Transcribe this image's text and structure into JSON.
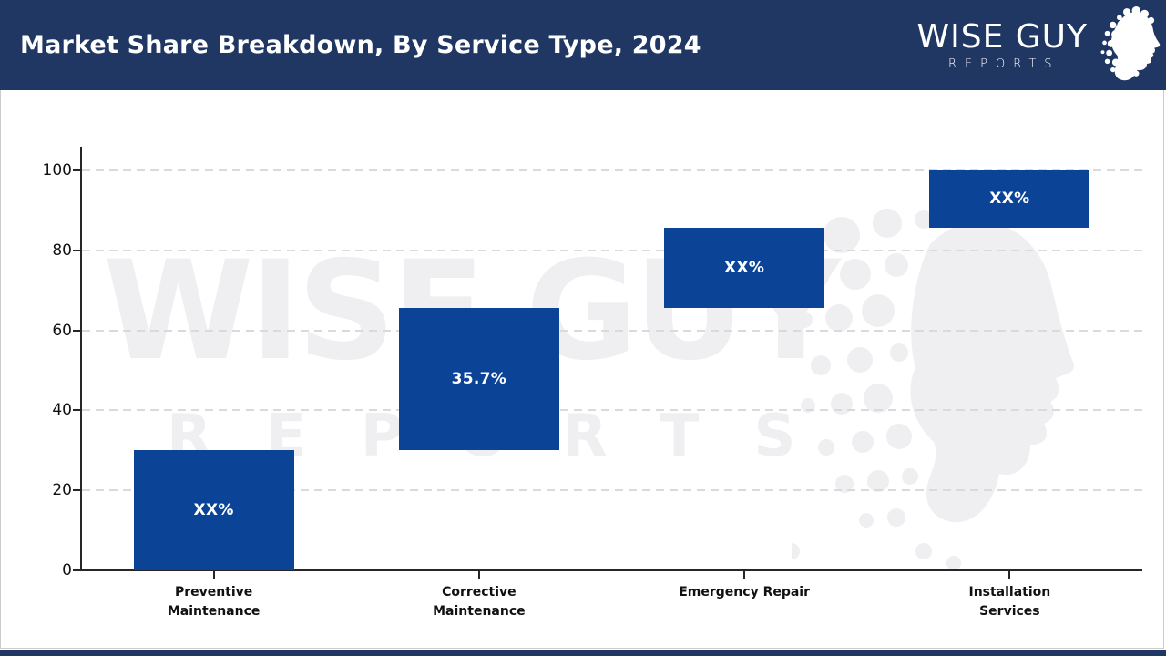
{
  "header": {
    "title": "Market Share Breakdown, By Service Type, 2024",
    "logo": {
      "name_line": "WISE GUY",
      "sub_line": "REPORTS"
    }
  },
  "watermark": {
    "line1": "WISE GUY",
    "line2": "REPORTS"
  },
  "chart_data": {
    "type": "bar",
    "subtype": "floating-waterfall",
    "title": "Market Share Breakdown, By Service Type, 2024",
    "categories": [
      [
        "Preventive",
        "Maintenance"
      ],
      [
        "Corrective",
        "Maintenance"
      ],
      [
        "Emergency Repair"
      ],
      [
        "Installation",
        "Services"
      ]
    ],
    "segments": [
      {
        "category": "Preventive Maintenance",
        "start": 0,
        "end": 30,
        "label": "XX%"
      },
      {
        "category": "Corrective Maintenance",
        "start": 30,
        "end": 65.7,
        "label": "35.7%"
      },
      {
        "category": "Emergency Repair",
        "start": 65.7,
        "end": 85.7,
        "label": "XX%"
      },
      {
        "category": "Installation Services",
        "start": 85.7,
        "end": 100,
        "label": "XX%"
      }
    ],
    "ylim": [
      0,
      100
    ],
    "yticks": [
      0,
      20,
      40,
      60,
      80,
      100
    ],
    "grid": "horizontal-dashed",
    "legend": "none",
    "bar_color": "#0b4397",
    "bar_label_color": "#ffffff"
  },
  "theme": {
    "header_navy": "#203763",
    "bar_blue": "#0b4397",
    "watermark_gray": "#efeff1",
    "grid_gray": "#dadada"
  }
}
